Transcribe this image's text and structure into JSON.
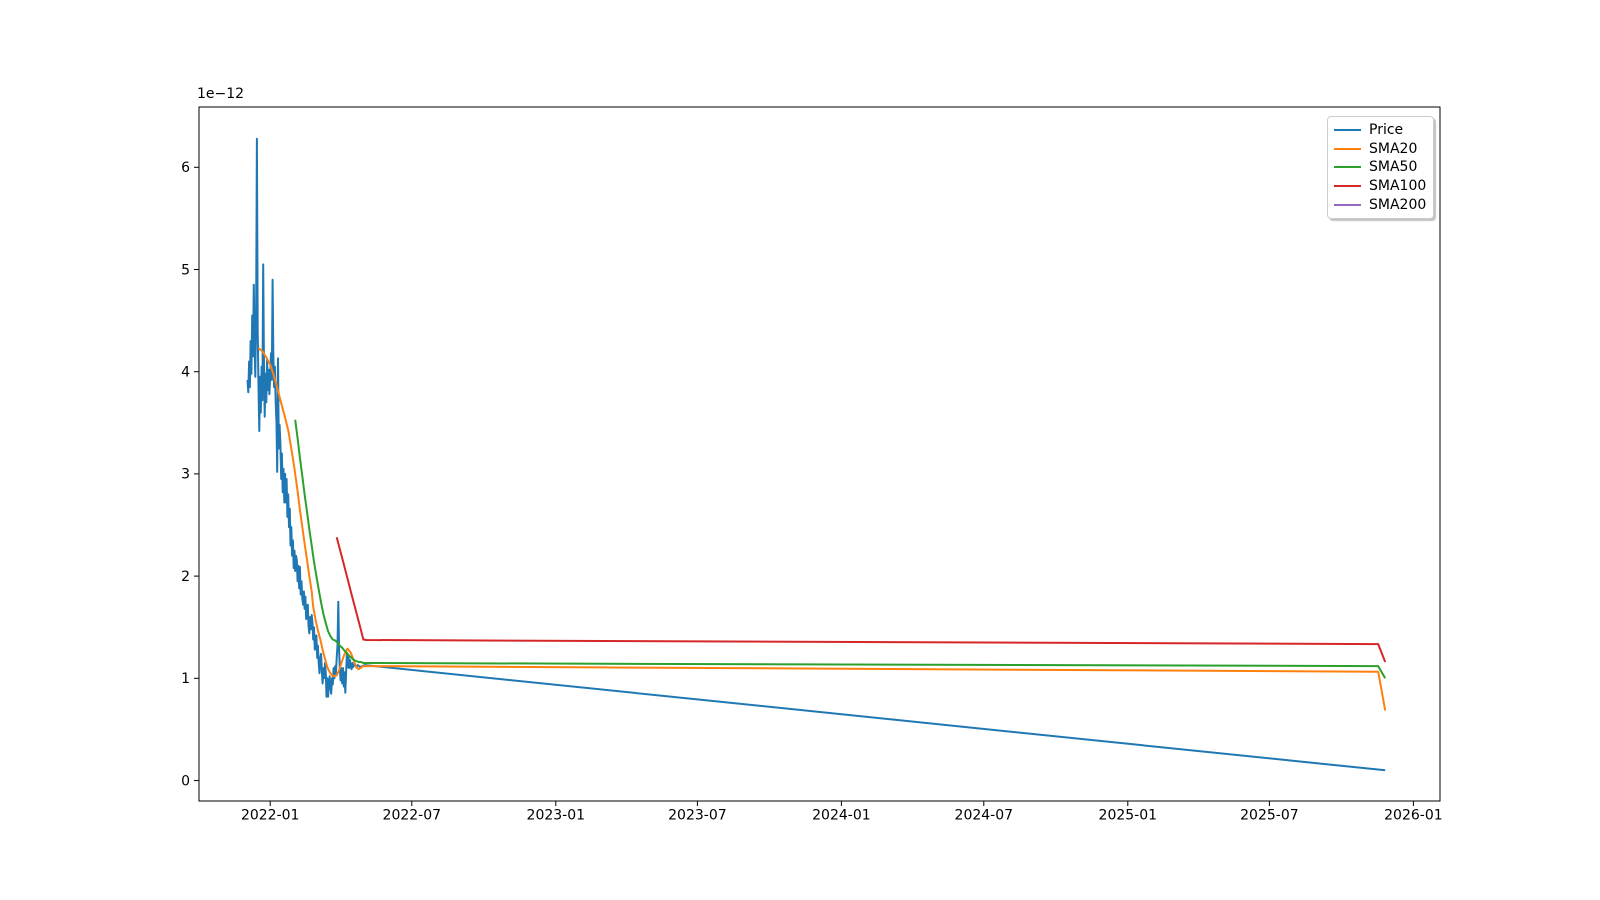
{
  "figure": {
    "background": "#ffffff"
  },
  "legend": {
    "position": "upper right",
    "items": [
      {
        "label": "Price",
        "color": "#1f77b4"
      },
      {
        "label": "SMA20",
        "color": "#ff7f0e"
      },
      {
        "label": "SMA50",
        "color": "#2ca02c"
      },
      {
        "label": "SMA100",
        "color": "#d62728"
      },
      {
        "label": "SMA200",
        "color": "#9467bd"
      }
    ]
  },
  "chart_data": {
    "type": "line",
    "title": "",
    "xlabel": "",
    "ylabel": "",
    "offset_text": "1e−12",
    "y_scale_factor": "1e-12",
    "x_unit": "days_since_2022-01-01",
    "xlim_days": [
      -91,
      1495
    ],
    "ylim": [
      -0.2,
      6.59
    ],
    "grid": false,
    "legend_position": "upper right",
    "x_ticks": [
      {
        "d": 0,
        "label": "2022-01"
      },
      {
        "d": 181,
        "label": "2022-07"
      },
      {
        "d": 365,
        "label": "2023-01"
      },
      {
        "d": 546,
        "label": "2023-07"
      },
      {
        "d": 730,
        "label": "2024-01"
      },
      {
        "d": 912,
        "label": "2024-07"
      },
      {
        "d": 1096,
        "label": "2025-01"
      },
      {
        "d": 1277,
        "label": "2025-07"
      },
      {
        "d": 1461,
        "label": "2026-01"
      }
    ],
    "y_ticks": [
      {
        "v": 0,
        "label": "0"
      },
      {
        "v": 1,
        "label": "1"
      },
      {
        "v": 2,
        "label": "2"
      },
      {
        "v": 3,
        "label": "3"
      },
      {
        "v": 4,
        "label": "4"
      },
      {
        "v": 5,
        "label": "5"
      },
      {
        "v": 6,
        "label": "6"
      }
    ],
    "series": [
      {
        "name": "Price",
        "color": "#1f77b4",
        "points": [
          [
            -29,
            3.92
          ],
          [
            -28,
            3.8
          ],
          [
            -27,
            4.1
          ],
          [
            -26,
            3.85
          ],
          [
            -25,
            4.3
          ],
          [
            -24,
            3.98
          ],
          [
            -23,
            4.55
          ],
          [
            -22,
            4.15
          ],
          [
            -21,
            4.85
          ],
          [
            -20,
            4.25
          ],
          [
            -19,
            3.95
          ],
          [
            -18,
            4.5
          ],
          [
            -17,
            6.28
          ],
          [
            -16,
            4.4
          ],
          [
            -15,
            3.85
          ],
          [
            -14,
            3.42
          ],
          [
            -13,
            3.95
          ],
          [
            -12,
            3.6
          ],
          [
            -11,
            4.05
          ],
          [
            -10,
            3.72
          ],
          [
            -9,
            5.05
          ],
          [
            -8,
            4.15
          ],
          [
            -7,
            3.56
          ],
          [
            -6,
            3.98
          ],
          [
            -5,
            3.7
          ],
          [
            -4,
            4.12
          ],
          [
            -3,
            3.82
          ],
          [
            -2,
            4.02
          ],
          [
            -1,
            3.78
          ],
          [
            0,
            3.95
          ],
          [
            1,
            4.18
          ],
          [
            2,
            3.92
          ],
          [
            3,
            4.9
          ],
          [
            4,
            4.2
          ],
          [
            5,
            3.85
          ],
          [
            6,
            4.05
          ],
          [
            7,
            3.7
          ],
          [
            8,
            3.5
          ],
          [
            9,
            3.02
          ],
          [
            10,
            4.13
          ],
          [
            11,
            3.25
          ],
          [
            12,
            3.48
          ],
          [
            13,
            3.3
          ],
          [
            14,
            2.95
          ],
          [
            15,
            3.2
          ],
          [
            16,
            2.82
          ],
          [
            17,
            3.05
          ],
          [
            18,
            2.72
          ],
          [
            19,
            3.0
          ],
          [
            20,
            2.72
          ],
          [
            21,
            2.95
          ],
          [
            22,
            2.58
          ],
          [
            23,
            2.8
          ],
          [
            24,
            2.48
          ],
          [
            25,
            2.66
          ],
          [
            26,
            2.3
          ],
          [
            27,
            2.48
          ],
          [
            28,
            2.2
          ],
          [
            29,
            2.35
          ],
          [
            30,
            2.08
          ],
          [
            31,
            2.25
          ],
          [
            32,
            2.05
          ],
          [
            33,
            2.2
          ],
          [
            34,
            2.16
          ],
          [
            35,
            1.95
          ],
          [
            36,
            2.1
          ],
          [
            37,
            1.88
          ],
          [
            38,
            2.09
          ],
          [
            39,
            1.82
          ],
          [
            40,
            1.95
          ],
          [
            41,
            1.78
          ],
          [
            42,
            1.72
          ],
          [
            43,
            1.85
          ],
          [
            44,
            1.68
          ],
          [
            45,
            1.8
          ],
          [
            46,
            1.58
          ],
          [
            47,
            1.7
          ],
          [
            48,
            1.72
          ],
          [
            49,
            1.52
          ],
          [
            50,
            1.44
          ],
          [
            51,
            1.6
          ],
          [
            52,
            1.48
          ],
          [
            53,
            1.62
          ],
          [
            54,
            1.54
          ],
          [
            55,
            1.38
          ],
          [
            56,
            1.5
          ],
          [
            57,
            1.28
          ],
          [
            58,
            1.4
          ],
          [
            59,
            1.42
          ],
          [
            60,
            1.2
          ],
          [
            61,
            1.32
          ],
          [
            62,
            1.15
          ],
          [
            63,
            1.05
          ],
          [
            64,
            1.2
          ],
          [
            65,
            1.24
          ],
          [
            66,
            1.08
          ],
          [
            67,
            0.95
          ],
          [
            68,
            1.1
          ],
          [
            69,
            1.0
          ],
          [
            70,
            1.15
          ],
          [
            71,
            1.05
          ],
          [
            72,
            0.82
          ],
          [
            73,
            1.0
          ],
          [
            74,
            0.82
          ],
          [
            75,
            0.96
          ],
          [
            76,
            1.02
          ],
          [
            77,
            0.9
          ],
          [
            78,
            0.85
          ],
          [
            79,
            1.0
          ],
          [
            80,
            0.94
          ],
          [
            81,
            1.1
          ],
          [
            82,
            1.0
          ],
          [
            83,
            1.12
          ],
          [
            84,
            1.05
          ],
          [
            85,
            1.2
          ],
          [
            86,
            1.32
          ],
          [
            87,
            1.75
          ],
          [
            88,
            1.28
          ],
          [
            89,
            1.1
          ],
          [
            90,
            0.98
          ],
          [
            91,
            1.1
          ],
          [
            92,
            0.95
          ],
          [
            93,
            1.1
          ],
          [
            94,
            0.92
          ],
          [
            95,
            1.06
          ],
          [
            96,
            0.86
          ],
          [
            97,
            1.05
          ],
          [
            98,
            1.24
          ],
          [
            99,
            1.11
          ],
          [
            100,
            1.21
          ],
          [
            101,
            1.1
          ],
          [
            102,
            1.18
          ],
          [
            103,
            1.12
          ],
          [
            104,
            1.09
          ],
          [
            105,
            1.15
          ],
          [
            106,
            1.11
          ],
          [
            108,
            1.14
          ],
          [
            110,
            1.11
          ],
          [
            112,
            1.13
          ],
          [
            115,
            1.11
          ],
          [
            118,
            1.12
          ],
          [
            121,
            1.13
          ],
          [
            1425,
            0.1
          ]
        ]
      },
      {
        "name": "SMA20",
        "color": "#ff7f0e",
        "points": [
          [
            -15,
            4.23
          ],
          [
            -10,
            4.2
          ],
          [
            -5,
            4.14
          ],
          [
            0,
            4.07
          ],
          [
            4,
            3.98
          ],
          [
            8,
            3.87
          ],
          [
            13,
            3.72
          ],
          [
            18,
            3.58
          ],
          [
            23,
            3.43
          ],
          [
            27,
            3.25
          ],
          [
            31,
            3.05
          ],
          [
            35,
            2.83
          ],
          [
            38,
            2.65
          ],
          [
            41,
            2.48
          ],
          [
            44,
            2.32
          ],
          [
            47,
            2.16
          ],
          [
            50,
            2.0
          ],
          [
            53,
            1.85
          ],
          [
            55,
            1.7
          ],
          [
            58,
            1.57
          ],
          [
            61,
            1.47
          ],
          [
            64,
            1.38
          ],
          [
            67,
            1.28
          ],
          [
            70,
            1.19
          ],
          [
            73,
            1.11
          ],
          [
            76,
            1.06
          ],
          [
            79,
            1.03
          ],
          [
            82,
            1.02
          ],
          [
            85,
            1.03
          ],
          [
            88,
            1.08
          ],
          [
            91,
            1.15
          ],
          [
            94,
            1.22
          ],
          [
            97,
            1.27
          ],
          [
            99,
            1.29
          ],
          [
            101,
            1.27
          ],
          [
            103,
            1.25
          ],
          [
            105,
            1.21
          ],
          [
            107,
            1.17
          ],
          [
            109,
            1.13
          ],
          [
            111,
            1.1
          ],
          [
            113,
            1.09
          ],
          [
            115,
            1.1
          ],
          [
            117,
            1.11
          ],
          [
            119,
            1.12
          ],
          [
            122,
            1.12
          ],
          [
            1416,
            1.065
          ],
          [
            1425,
            0.685
          ]
        ]
      },
      {
        "name": "SMA50",
        "color": "#2ca02c",
        "points": [
          [
            32,
            3.53
          ],
          [
            35,
            3.35
          ],
          [
            38,
            3.16
          ],
          [
            41,
            2.98
          ],
          [
            44,
            2.8
          ],
          [
            47,
            2.63
          ],
          [
            50,
            2.46
          ],
          [
            53,
            2.3
          ],
          [
            56,
            2.14
          ],
          [
            59,
            2.0
          ],
          [
            62,
            1.87
          ],
          [
            65,
            1.74
          ],
          [
            68,
            1.63
          ],
          [
            71,
            1.54
          ],
          [
            74,
            1.46
          ],
          [
            77,
            1.41
          ],
          [
            80,
            1.38
          ],
          [
            83,
            1.37
          ],
          [
            86,
            1.35
          ],
          [
            89,
            1.32
          ],
          [
            92,
            1.3
          ],
          [
            95,
            1.27
          ],
          [
            98,
            1.25
          ],
          [
            101,
            1.22
          ],
          [
            104,
            1.2
          ],
          [
            107,
            1.18
          ],
          [
            110,
            1.17
          ],
          [
            113,
            1.16
          ],
          [
            116,
            1.16
          ],
          [
            119,
            1.15
          ],
          [
            122,
            1.15
          ],
          [
            1416,
            1.12
          ],
          [
            1425,
            1.0
          ]
        ]
      },
      {
        "name": "SMA100",
        "color": "#d62728",
        "points": [
          [
            85,
            2.38
          ],
          [
            95,
            2.09
          ],
          [
            105,
            1.79
          ],
          [
            112,
            1.59
          ],
          [
            117,
            1.44
          ],
          [
            119,
            1.38
          ],
          [
            123,
            1.375
          ],
          [
            1416,
            1.335
          ],
          [
            1425,
            1.16
          ]
        ]
      },
      {
        "name": "SMA200",
        "color": "#9467bd",
        "points": []
      }
    ]
  }
}
